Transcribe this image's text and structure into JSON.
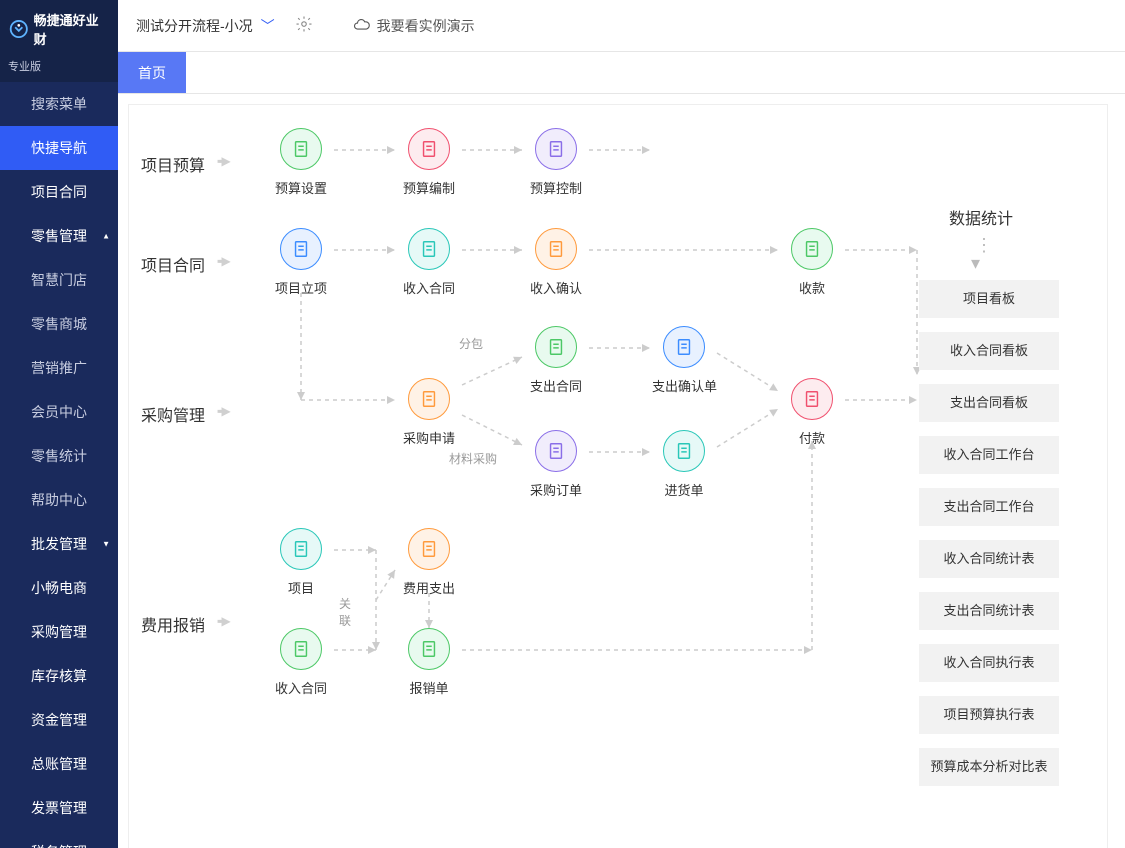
{
  "brand": {
    "name": "畅捷通好业财",
    "edition": "专业版"
  },
  "sidebar": {
    "search": "搜索菜单",
    "items": [
      {
        "label": "快捷导航",
        "active": true
      },
      {
        "label": "项目合同"
      },
      {
        "label": "零售管理",
        "arrow": "▲",
        "children": [
          {
            "label": "智慧门店"
          },
          {
            "label": "零售商城"
          },
          {
            "label": "营销推广"
          },
          {
            "label": "会员中心"
          },
          {
            "label": "零售统计"
          },
          {
            "label": "帮助中心"
          }
        ]
      },
      {
        "label": "批发管理",
        "arrow": "▼"
      },
      {
        "label": "小畅电商"
      },
      {
        "label": "采购管理"
      },
      {
        "label": "库存核算"
      },
      {
        "label": "资金管理"
      },
      {
        "label": "总账管理"
      },
      {
        "label": "发票管理"
      },
      {
        "label": "税务管理"
      }
    ]
  },
  "topbar": {
    "workflow": "测试分开流程-小况",
    "demo": "我要看实例演示"
  },
  "tabs": [
    {
      "label": "首页",
      "active": true
    }
  ],
  "rows": {
    "r1": "项目预算",
    "r2": "项目合同",
    "r3": "采购管理",
    "r4": "费用报销"
  },
  "nodes": {
    "budget_set": {
      "label": "预算设置",
      "color": "#4cc866",
      "bg": "#e8faef"
    },
    "budget_make": {
      "label": "预算编制",
      "color": "#f0506e",
      "bg": "#fdecef"
    },
    "budget_ctrl": {
      "label": "预算控制",
      "color": "#8a6ee8",
      "bg": "#f1edfc"
    },
    "proj_init": {
      "label": "项目立项",
      "color": "#3b8cff",
      "bg": "#e8f1ff"
    },
    "income_cont": {
      "label": "收入合同",
      "color": "#29c7b8",
      "bg": "#e6f9f7"
    },
    "income_conf": {
      "label": "收入确认",
      "color": "#ff9a3c",
      "bg": "#fff2e6"
    },
    "receipt": {
      "label": "收款",
      "color": "#4cc866",
      "bg": "#e8faef"
    },
    "purch_req": {
      "label": "采购申请",
      "color": "#ff9a3c",
      "bg": "#fff2e6"
    },
    "exp_cont": {
      "label": "支出合同",
      "color": "#4cc866",
      "bg": "#e8faef"
    },
    "exp_conf": {
      "label": "支出确认单",
      "color": "#3b8cff",
      "bg": "#e8f1ff"
    },
    "purch_order": {
      "label": "采购订单",
      "color": "#8a6ee8",
      "bg": "#f1edfc"
    },
    "goods_in": {
      "label": "进货单",
      "color": "#29c7b8",
      "bg": "#e6f9f7"
    },
    "payment": {
      "label": "付款",
      "color": "#f0506e",
      "bg": "#fdecef"
    },
    "proj": {
      "label": "项目",
      "color": "#29c7b8",
      "bg": "#e6f9f7"
    },
    "exp_out": {
      "label": "费用支出",
      "color": "#ff9a3c",
      "bg": "#fff2e6"
    },
    "income_cont2": {
      "label": "收入合同",
      "color": "#4cc866",
      "bg": "#e8faef"
    },
    "reimb": {
      "label": "报销单",
      "color": "#4cc866",
      "bg": "#e8faef"
    }
  },
  "linkLabels": {
    "fenbao": "分包",
    "cailiao": "材料采购",
    "guanlian": "关\n联"
  },
  "stats": {
    "title": "数据统计",
    "buttons": [
      "项目看板",
      "收入合同看板",
      "支出合同看板",
      "收入合同工作台",
      "支出合同工作台",
      "收入合同统计表",
      "支出合同统计表",
      "收入合同执行表",
      "项目预算执行表",
      "预算成本分析对比表"
    ]
  },
  "colors": {
    "sidebar": "#1a2a5c",
    "accent": "#305cf5"
  }
}
